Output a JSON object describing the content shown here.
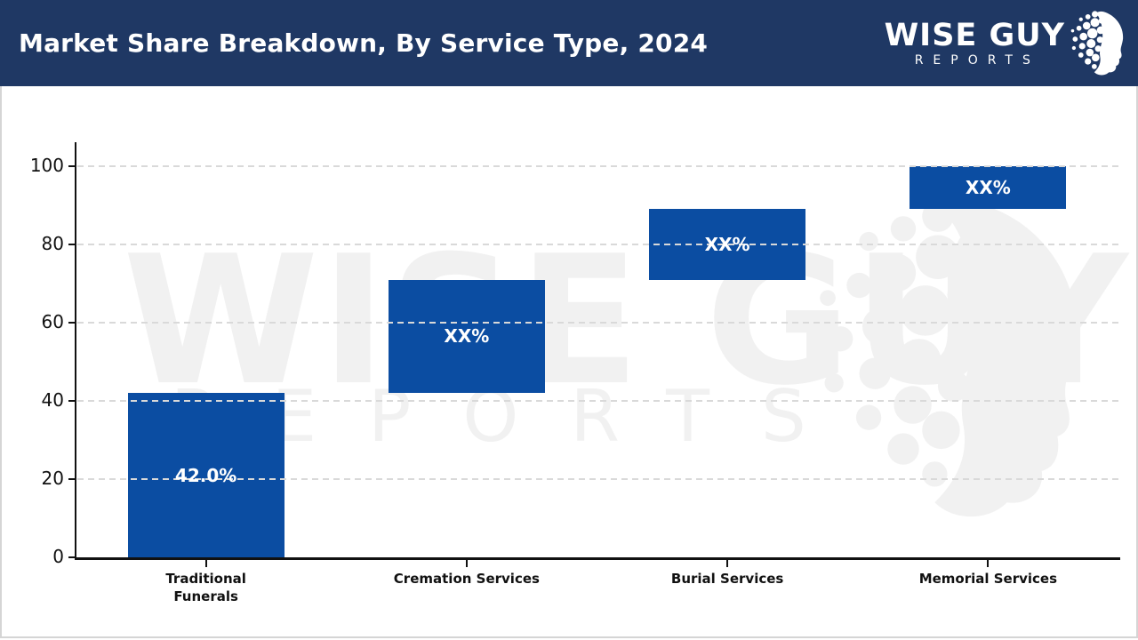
{
  "header": {
    "title": "Market Share Breakdown, By Service Type, 2024",
    "bg_color": "#1f3864",
    "logo": {
      "line1": "WISE GUY",
      "line2": "REPORTS"
    }
  },
  "watermark": {
    "line1": "WISE GUY",
    "line2": "REPORTS"
  },
  "chart_data": {
    "type": "bar",
    "subtype": "waterfall",
    "title": "Market Share Breakdown, By Service Type, 2024",
    "categories": [
      "Traditional Funerals",
      "Cremation Services",
      "Burial Services",
      "Memorial Services"
    ],
    "categories_display": [
      "Traditional\nFunerals",
      "Cremation Services",
      "Burial Services",
      "Memorial Services"
    ],
    "series": [
      {
        "name": "Market Share %",
        "starts": [
          0,
          42,
          71,
          89
        ],
        "ends": [
          42,
          71,
          89,
          100
        ],
        "values": [
          42,
          29,
          18,
          11
        ]
      }
    ],
    "bar_labels": [
      "42.0%",
      "XX%",
      "XX%",
      "XX%"
    ],
    "ylim": [
      0,
      100
    ],
    "yticks": [
      0,
      20,
      40,
      60,
      80,
      100
    ],
    "grid": "horizontal dashed, drawn above bars",
    "legend": "none",
    "bar_color": "#0b4da2",
    "bar_label_color": "#ffffff",
    "grid_color": "#d9d9d9",
    "axis_color": "#111111",
    "tick_label_color": "#111111"
  }
}
